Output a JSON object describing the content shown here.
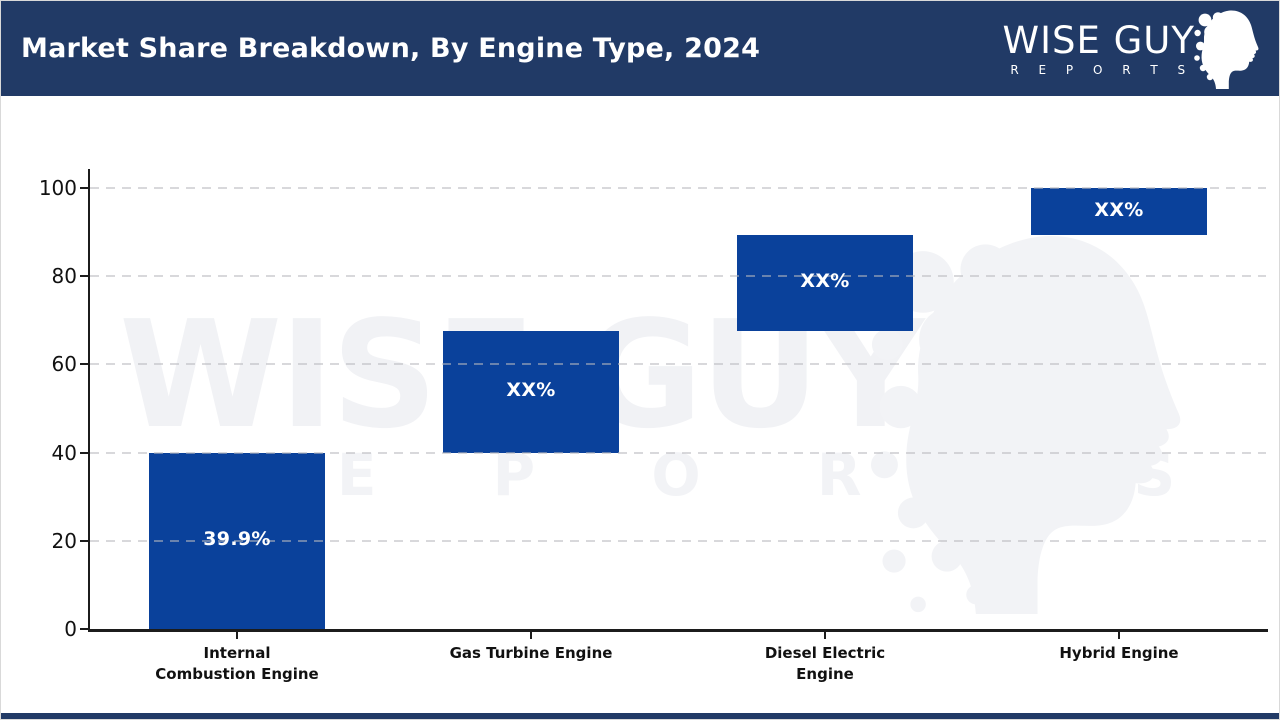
{
  "header": {
    "title": "Market Share Breakdown, By Engine Type, 2024",
    "bg_color": "#213a66",
    "logo": {
      "line1": "WISE GUY",
      "line2": "R E P O R T S"
    }
  },
  "watermark": {
    "line1": "WISE GUY",
    "line2": "R E P O R T S"
  },
  "chart_data": {
    "type": "bar",
    "subtype": "waterfall",
    "title": "Market Share Breakdown, By Engine Type, 2024",
    "categories": [
      "Internal\nCombustion Engine",
      "Gas Turbine Engine",
      "Diesel Electric\nEngine",
      "Hybrid Engine"
    ],
    "series": [
      {
        "name": "Market Share",
        "segments": [
          {
            "start": 0,
            "end": 39.9,
            "label": "39.9%"
          },
          {
            "start": 39.9,
            "end": 67.5,
            "label": "XX%"
          },
          {
            "start": 67.5,
            "end": 89.3,
            "label": "XX%"
          },
          {
            "start": 89.3,
            "end": 100,
            "label": "XX%"
          }
        ]
      }
    ],
    "xlabel": "",
    "ylabel": "",
    "ylim": [
      0,
      100
    ],
    "yticks": [
      0,
      20,
      40,
      60,
      80,
      100
    ],
    "grid": "horizontal-dashed-over-bars",
    "legend": "none",
    "bar_color": "#0a419b",
    "bar_label_color": "#ffffff",
    "axis_color": "#1c1c1c"
  }
}
